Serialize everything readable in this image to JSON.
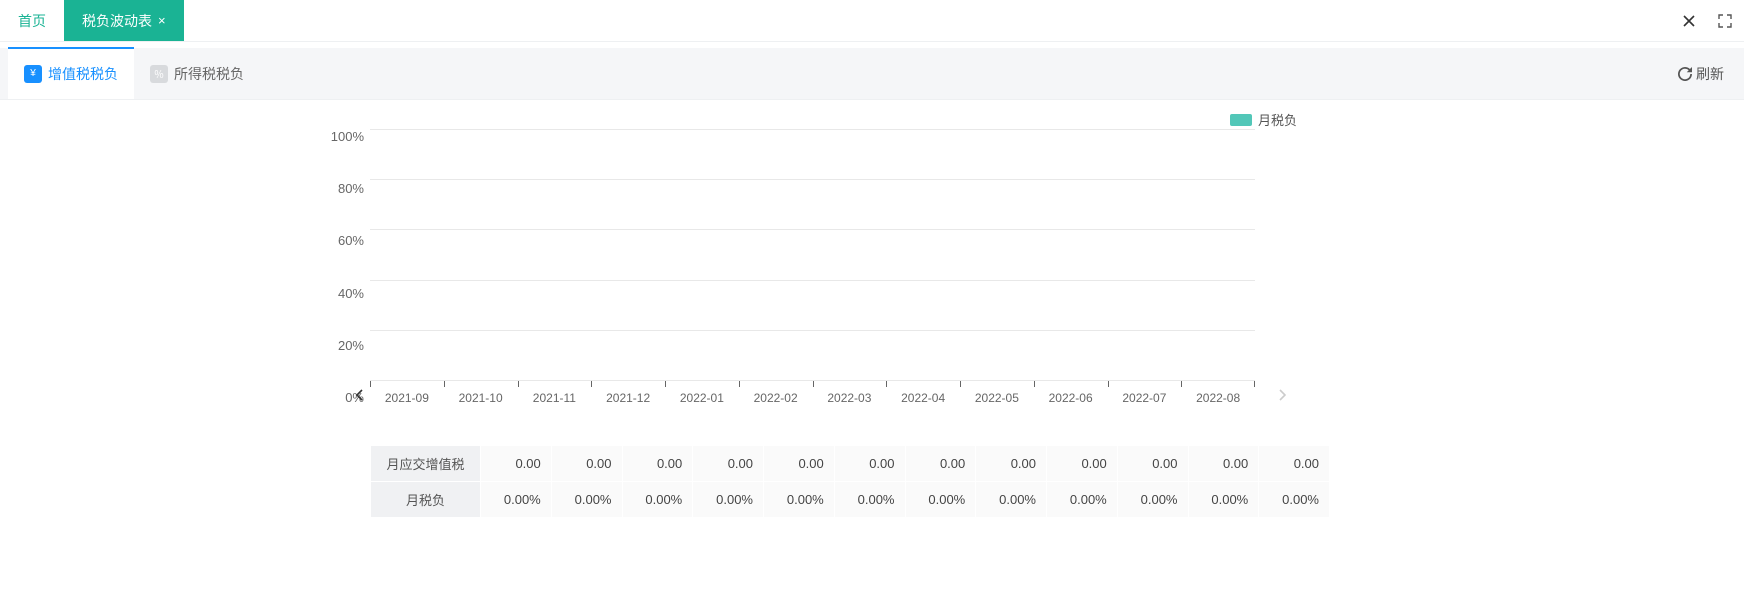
{
  "topTabs": {
    "home": "首页",
    "active": "税负波动表"
  },
  "subTabs": {
    "vat": "增值税税负",
    "incomeTax": "所得税税负"
  },
  "toolbar": {
    "refresh": "刷新"
  },
  "chart": {
    "type": "bar",
    "legendLabel": "月税负",
    "legendColor": "#52c7b8",
    "yTicks": [
      "100%",
      "80%",
      "60%",
      "40%",
      "20%",
      "0%"
    ],
    "ylim": [
      0,
      100
    ],
    "gridColor": "#e8e8e8",
    "backgroundColor": "#ffffff",
    "categories": [
      "2021-09",
      "2021-10",
      "2021-11",
      "2021-12",
      "2022-01",
      "2022-02",
      "2022-03",
      "2022-04",
      "2022-05",
      "2022-06",
      "2022-07",
      "2022-08"
    ],
    "values": [
      0,
      0,
      0,
      0,
      0,
      0,
      0,
      0,
      0,
      0,
      0,
      0
    ]
  },
  "table": {
    "row1Header": "月应交增值税",
    "row2Header": "月税负",
    "row1": [
      "0.00",
      "0.00",
      "0.00",
      "0.00",
      "0.00",
      "0.00",
      "0.00",
      "0.00",
      "0.00",
      "0.00",
      "0.00",
      "0.00"
    ],
    "row2": [
      "0.00%",
      "0.00%",
      "0.00%",
      "0.00%",
      "0.00%",
      "0.00%",
      "0.00%",
      "0.00%",
      "0.00%",
      "0.00%",
      "0.00%",
      "0.00%"
    ]
  }
}
